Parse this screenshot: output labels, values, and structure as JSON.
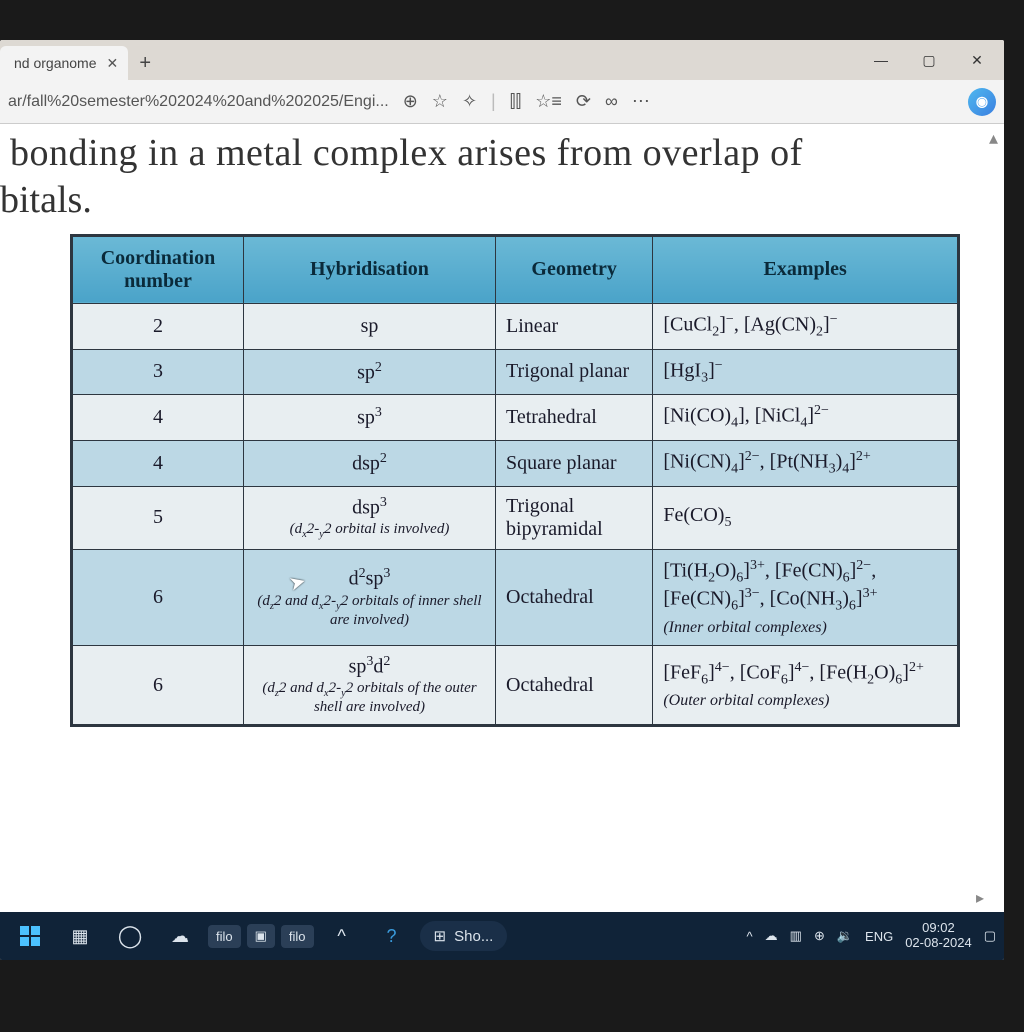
{
  "browser": {
    "tab_title": "nd organome",
    "url": "ar/fall%20semester%202024%20and%202025/Engi...",
    "window_controls": {
      "min": "—",
      "max": "▢",
      "close": "✕"
    }
  },
  "page": {
    "headline_top": "bonding in a metal complex arises from overlap of",
    "headline_sub": "bitals."
  },
  "table": {
    "headers": [
      "Coordination number",
      "Hybridisation",
      "Geometry",
      "Examples"
    ],
    "rows": [
      {
        "cn": "2",
        "hyb_html": "sp",
        "note": "",
        "geom": "Linear",
        "ex_html": "[CuCl<sub>2</sub>]<sup>−</sup>, [Ag(CN)<sub>2</sub>]<sup>−</sup>",
        "ex_note": "",
        "alt": false
      },
      {
        "cn": "3",
        "hyb_html": "sp<sup>2</sup>",
        "note": "",
        "geom": "Trigonal planar",
        "ex_html": "[HgI<sub>3</sub>]<sup>−</sup>",
        "ex_note": "",
        "alt": true
      },
      {
        "cn": "4",
        "hyb_html": "sp<sup>3</sup>",
        "note": "",
        "geom": "Tetrahedral",
        "ex_html": "[Ni(CO)<sub>4</sub>], [NiCl<sub>4</sub>]<sup>2−</sup>",
        "ex_note": "",
        "alt": false
      },
      {
        "cn": "4",
        "hyb_html": "dsp<sup>2</sup>",
        "note": "",
        "geom": "Square planar",
        "ex_html": "[Ni(CN)<sub>4</sub>]<sup>2−</sup>, [Pt(NH<sub>3</sub>)<sub>4</sub>]<sup>2+</sup>",
        "ex_note": "",
        "alt": true
      },
      {
        "cn": "5",
        "hyb_html": "dsp<sup>3</sup>",
        "note": "(d<sub>x</sub>2-<sub>y</sub>2 orbital is involved)",
        "geom": "Trigonal bipyramidal",
        "ex_html": "Fe(CO)<sub>5</sub>",
        "ex_note": "",
        "alt": false
      },
      {
        "cn": "6",
        "hyb_html": "d<sup>2</sup>sp<sup>3</sup>",
        "note": "(d<sub>z</sub>2 and d<sub>x</sub>2-<sub>y</sub>2 orbitals of inner shell are involved)",
        "geom": "Octahedral",
        "ex_html": "[Ti(H<sub>2</sub>O)<sub>6</sub>]<sup>3+</sup>, [Fe(CN)<sub>6</sub>]<sup>2−</sup>, [Fe(CN)<sub>6</sub>]<sup>3−</sup>, [Co(NH<sub>3</sub>)<sub>6</sub>]<sup>3+</sup>",
        "ex_note": "(Inner orbital complexes)",
        "alt": true
      },
      {
        "cn": "6",
        "hyb_html": "sp<sup>3</sup>d<sup>2</sup>",
        "note": "(d<sub>z</sub>2 and d<sub>x</sub>2-<sub>y</sub>2 orbitals of the outer shell are involved)",
        "geom": "Octahedral",
        "ex_html": "[FeF<sub>6</sub>]<sup>4−</sup>, [CoF<sub>6</sub>]<sup>4−</sup>, [Fe(H<sub>2</sub>O)<sub>6</sub>]<sup>2+</sup>",
        "ex_note": "(Outer orbital complexes)",
        "alt": false
      }
    ]
  },
  "taskbar": {
    "search_label": "Sho...",
    "lang": "ENG",
    "time": "09:02",
    "date": "02-08-2024"
  },
  "colors": {
    "header_bg_top": "#6bb9d6",
    "header_bg_bottom": "#4aa3c9",
    "row_alt": "#bcd8e5",
    "row_reg": "#e8eef1",
    "border": "#2d3640",
    "taskbar": "#102338"
  }
}
